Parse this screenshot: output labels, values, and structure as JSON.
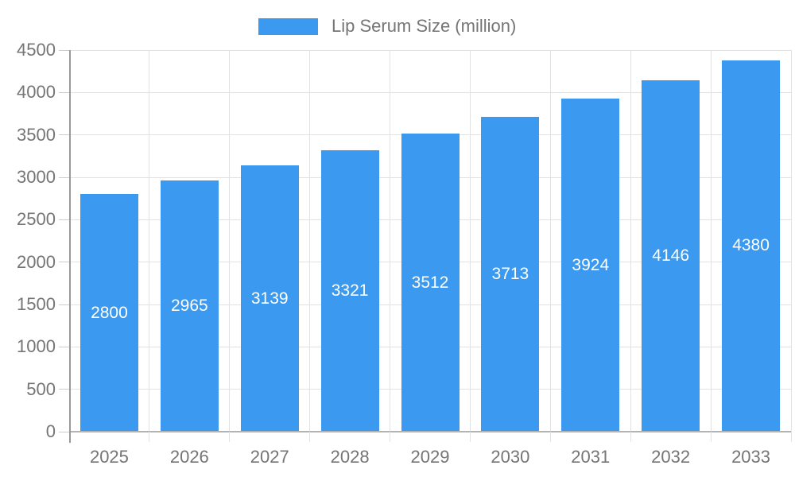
{
  "legend": {
    "label": "Lip Serum Size (million)"
  },
  "colors": {
    "bar": "#3B99F0",
    "grid": "#E2E2E2",
    "axis_y": "#999999",
    "axis_x": "#B3B3B3",
    "ytick": "#CCCCCC",
    "text": "#757575",
    "bar_label": "#FFFFFF",
    "background": "#FFFFFF"
  },
  "chart_data": {
    "type": "bar",
    "title": "",
    "xlabel": "",
    "ylabel": "",
    "categories": [
      "2025",
      "2026",
      "2027",
      "2028",
      "2029",
      "2030",
      "2031",
      "2032",
      "2033"
    ],
    "series": [
      {
        "name": "Lip Serum Size (million)",
        "values": [
          2800,
          2965,
          3139,
          3321,
          3512,
          3713,
          3924,
          4146,
          4380
        ]
      }
    ],
    "ylim": [
      0,
      4500
    ],
    "yticks": [
      0,
      500,
      1000,
      1500,
      2000,
      2500,
      3000,
      3500,
      4000,
      4500
    ],
    "grid": true,
    "legend_position": "top-center",
    "bar_label_position": "inside-center"
  }
}
